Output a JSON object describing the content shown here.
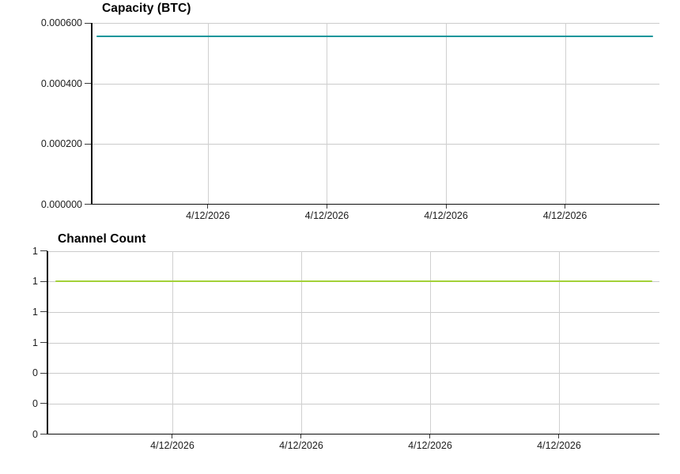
{
  "page": {
    "background": "#ffffff",
    "description_titles": [
      "Capacity (BTC)",
      "Channel Count"
    ]
  },
  "colors": {
    "capacity_line": "#13969b",
    "channel_count_line": "#a3d138",
    "gridline": "#cbcbcb",
    "axis": "#0d0d0d",
    "label_text": "#1d1d1d",
    "title_text": "#000000"
  },
  "chart_data": [
    {
      "type": "line",
      "title": "Capacity (BTC)",
      "xlabel": "",
      "ylabel": "",
      "ylim": [
        0,
        0.0006
      ],
      "grid": true,
      "legend": "none",
      "y_tick_labels": [
        "0.000600",
        "0.000400",
        "0.000200",
        "0.000000"
      ],
      "x_tick_labels": [
        "4/12/2026",
        "4/12/2026",
        "4/12/2026",
        "4/12/2026"
      ],
      "series": [
        {
          "name": "Capacity (BTC)",
          "color": "#13969b",
          "shape": "flat-horizontal-line",
          "constant_value": 0.000555
        }
      ]
    },
    {
      "type": "line",
      "title": "Channel Count",
      "xlabel": "",
      "ylabel": "",
      "ylim": [
        0,
        1.2
      ],
      "grid": true,
      "legend": "none",
      "y_tick_labels": [
        "1",
        "1",
        "1",
        "1",
        "0",
        "0",
        "0"
      ],
      "x_tick_labels": [
        "4/12/2026",
        "4/12/2026",
        "4/12/2026",
        "4/12/2026"
      ],
      "series": [
        {
          "name": "Channel Count",
          "color": "#a3d138",
          "shape": "flat-horizontal-line",
          "constant_value": 1
        }
      ]
    }
  ]
}
